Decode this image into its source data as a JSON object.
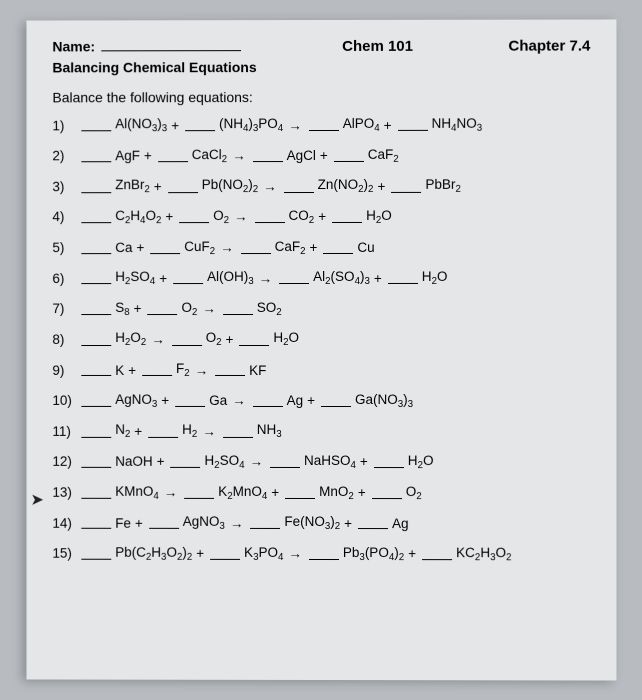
{
  "header": {
    "name_label": "Name:",
    "course": "Chem 101",
    "chapter": "Chapter 7.4",
    "subtitle": "Balancing Chemical Equations",
    "instruction": "Balance the following equations:"
  },
  "rows": [
    {
      "n": "1)",
      "t": [
        {
          "b": 1
        },
        {
          "f": "Al(NO₃)₃"
        },
        {
          "op": "+"
        },
        {
          "b": 1
        },
        {
          "f": "(NH₄)₃PO₄"
        },
        {
          "arr": "→"
        },
        {
          "b": 1
        },
        {
          "f": "AlPO₄"
        },
        {
          "op": "+"
        },
        {
          "b": 1
        },
        {
          "f": "NH₄NO₃"
        }
      ]
    },
    {
      "n": "2)",
      "t": [
        {
          "b": 1
        },
        {
          "f": "AgF"
        },
        {
          "op": "+"
        },
        {
          "b": 1
        },
        {
          "f": "CaCl₂"
        },
        {
          "arr": "→"
        },
        {
          "b": 1
        },
        {
          "f": "AgCl"
        },
        {
          "op": "+"
        },
        {
          "b": 1
        },
        {
          "f": "CaF₂"
        }
      ]
    },
    {
      "n": "3)",
      "t": [
        {
          "b": 1
        },
        {
          "f": "ZnBr₂"
        },
        {
          "op": "+"
        },
        {
          "b": 1
        },
        {
          "f": "Pb(NO₂)₂"
        },
        {
          "arr": "→"
        },
        {
          "b": 1
        },
        {
          "f": "Zn(NO₂)₂"
        },
        {
          "op": "+"
        },
        {
          "b": 1
        },
        {
          "f": "PbBr₂"
        }
      ]
    },
    {
      "n": "4)",
      "t": [
        {
          "b": 1
        },
        {
          "f": "C₂H₄O₂"
        },
        {
          "op": "+"
        },
        {
          "b": 1
        },
        {
          "f": "O₂"
        },
        {
          "arr": "→"
        },
        {
          "b": 1
        },
        {
          "f": "CO₂"
        },
        {
          "op": "+"
        },
        {
          "b": 1
        },
        {
          "f": "H₂O"
        }
      ]
    },
    {
      "n": "5)",
      "t": [
        {
          "b": 1
        },
        {
          "f": "Ca"
        },
        {
          "op": "+"
        },
        {
          "b": 1
        },
        {
          "f": "CuF₂"
        },
        {
          "arr": "→"
        },
        {
          "b": 1
        },
        {
          "f": "CaF₂"
        },
        {
          "op": "+"
        },
        {
          "b": 1
        },
        {
          "f": "Cu"
        }
      ]
    },
    {
      "n": "6)",
      "t": [
        {
          "b": 1
        },
        {
          "f": "H₂SO₄"
        },
        {
          "op": "+"
        },
        {
          "b": 1
        },
        {
          "f": "Al(OH)₃"
        },
        {
          "arr": "→"
        },
        {
          "b": 1
        },
        {
          "f": "Al₂(SO₄)₃"
        },
        {
          "op": "+"
        },
        {
          "b": 1
        },
        {
          "f": "H₂O"
        }
      ]
    },
    {
      "n": "7)",
      "t": [
        {
          "b": 1
        },
        {
          "f": "S₈"
        },
        {
          "op": "+"
        },
        {
          "b": 1
        },
        {
          "f": "O₂"
        },
        {
          "arr": "→"
        },
        {
          "b": 1
        },
        {
          "f": "SO₂"
        }
      ]
    },
    {
      "n": "8)",
      "t": [
        {
          "b": 1
        },
        {
          "f": "H₂O₂"
        },
        {
          "arr": "→"
        },
        {
          "b": 1
        },
        {
          "f": "O₂"
        },
        {
          "op": "+"
        },
        {
          "b": 1
        },
        {
          "f": "H₂O"
        }
      ]
    },
    {
      "n": "9)",
      "t": [
        {
          "b": 1
        },
        {
          "f": "K"
        },
        {
          "op": "+"
        },
        {
          "b": 1
        },
        {
          "f": "F₂"
        },
        {
          "arr": "→"
        },
        {
          "b": 1
        },
        {
          "f": "KF"
        }
      ]
    },
    {
      "n": "10)",
      "t": [
        {
          "b": 1
        },
        {
          "f": "AgNO₃"
        },
        {
          "op": "+"
        },
        {
          "b": 1
        },
        {
          "f": "Ga"
        },
        {
          "arr": "→"
        },
        {
          "b": 1
        },
        {
          "f": "Ag"
        },
        {
          "op": "+"
        },
        {
          "b": 1
        },
        {
          "f": "Ga(NO₃)₃"
        }
      ]
    },
    {
      "n": "11)",
      "t": [
        {
          "b": 1
        },
        {
          "f": "N₂"
        },
        {
          "op": "+"
        },
        {
          "b": 1
        },
        {
          "f": "H₂"
        },
        {
          "arr": "→"
        },
        {
          "b": 1
        },
        {
          "f": "NH₃"
        }
      ]
    },
    {
      "n": "12)",
      "t": [
        {
          "b": 1
        },
        {
          "f": "NaOH"
        },
        {
          "op": "+"
        },
        {
          "b": 1
        },
        {
          "f": "H₂SO₄"
        },
        {
          "arr": "→"
        },
        {
          "b": 1
        },
        {
          "f": "NaHSO₄"
        },
        {
          "op": "+"
        },
        {
          "b": 1
        },
        {
          "f": "H₂O"
        }
      ]
    },
    {
      "n": "13)",
      "t": [
        {
          "b": 1
        },
        {
          "f": "KMnO₄"
        },
        {
          "arr": "→"
        },
        {
          "b": 1
        },
        {
          "f": "K₂MnO₄"
        },
        {
          "op": "+"
        },
        {
          "b": 1
        },
        {
          "f": "MnO₂"
        },
        {
          "op": "+"
        },
        {
          "b": 1
        },
        {
          "f": "O₂"
        }
      ]
    },
    {
      "n": "14)",
      "t": [
        {
          "b": 1
        },
        {
          "f": "Fe"
        },
        {
          "op": "+"
        },
        {
          "b": 1
        },
        {
          "f": "AgNO₃"
        },
        {
          "arr": "→"
        },
        {
          "b": 1
        },
        {
          "f": "Fe(NO₃)₂"
        },
        {
          "op": "+"
        },
        {
          "b": 1
        },
        {
          "f": "Ag"
        }
      ]
    },
    {
      "n": "15)",
      "t": [
        {
          "b": 1
        },
        {
          "f": "Pb(C₂H₃O₂)₂"
        },
        {
          "op": "+"
        },
        {
          "b": 1
        },
        {
          "f": "K₃PO₄"
        },
        {
          "arr": "→"
        },
        {
          "b": 1
        },
        {
          "f": "Pb₃(PO₄)₂"
        },
        {
          "op": "+"
        },
        {
          "b": 1
        },
        {
          "f": "KC₂H₃O₂"
        }
      ]
    }
  ]
}
